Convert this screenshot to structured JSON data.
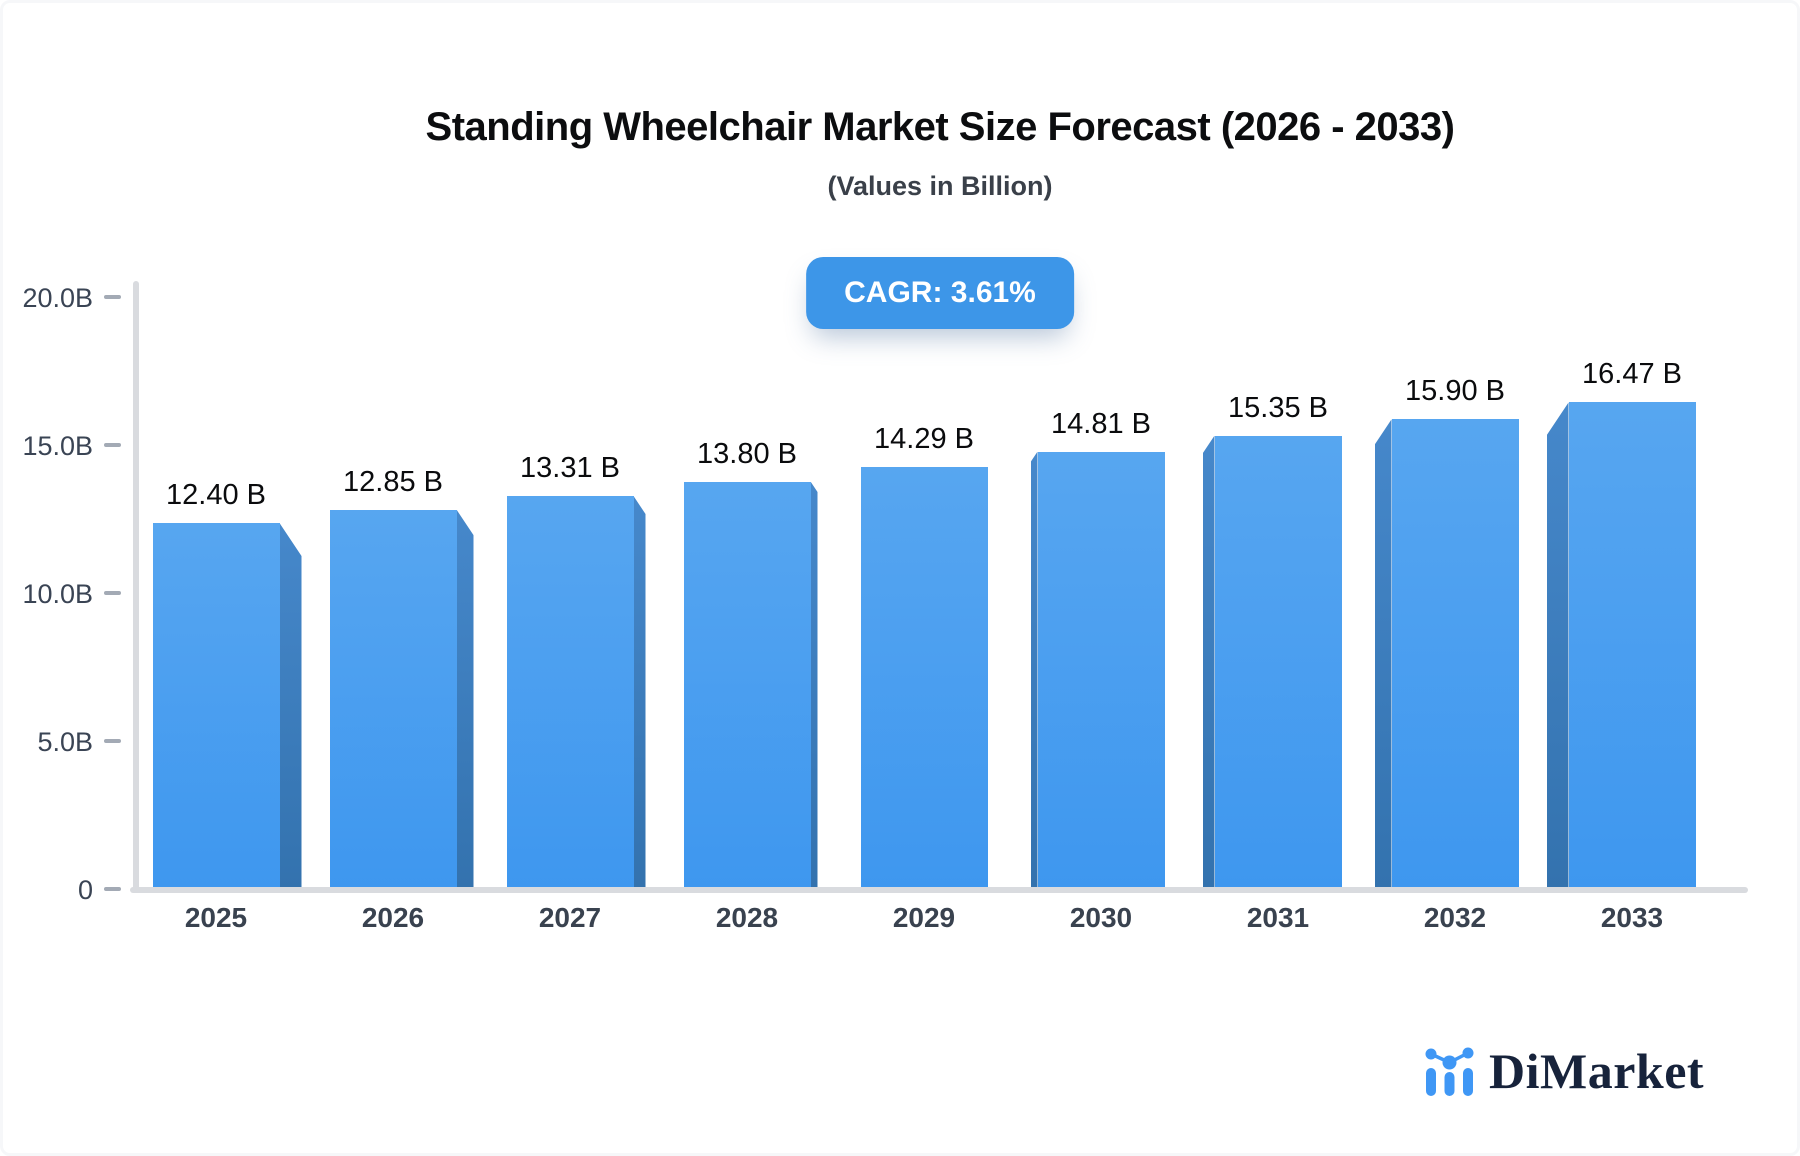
{
  "header": {
    "title": "Standing Wheelchair Market Size Forecast (2026 - 2033)",
    "subtitle": "(Values in Billion)",
    "cagr_badge": "CAGR: 3.61%"
  },
  "chart_data": {
    "type": "bar",
    "title": "Standing Wheelchair Market Size Forecast (2026 - 2033)",
    "subtitle": "(Values in Billion)",
    "cagr": "3.61%",
    "categories": [
      "2025",
      "2026",
      "2027",
      "2028",
      "2029",
      "2030",
      "2031",
      "2032",
      "2033"
    ],
    "values": [
      12.4,
      12.85,
      13.31,
      13.8,
      14.29,
      14.81,
      15.35,
      15.9,
      16.47
    ],
    "bar_labels": [
      "12.40 B",
      "12.85 B",
      "13.31 B",
      "13.80 B",
      "14.29 B",
      "14.81 B",
      "15.35 B",
      "15.90 B",
      "16.47 B"
    ],
    "unit": "Billion",
    "xlabel": "",
    "ylabel": "",
    "ylim": [
      0,
      20
    ],
    "yticks": {
      "labels": [
        "20.0B",
        "15.0B",
        "10.0B",
        "5.0B",
        "0"
      ],
      "values": [
        20,
        15,
        10,
        5,
        0
      ]
    },
    "grid": false,
    "legend": "none",
    "colors": {
      "bar_face_top": "#57A6F0",
      "bar_face_bottom": "#3E97EF",
      "bar_side": "#3776B3",
      "axis_line": "#D9DBDF",
      "tick_mark": "#A3AAB5",
      "value_label_text": "#0A0B0D",
      "axis_label_text": "#3A4454"
    }
  },
  "badge_colors": {
    "background": "#3D96E8",
    "text": "#FFFFFF"
  },
  "logo": {
    "text": "DiMarket",
    "icon": "bar-line-chart-icon",
    "icon_color": "#3F97F5",
    "text_color": "#17233B"
  }
}
